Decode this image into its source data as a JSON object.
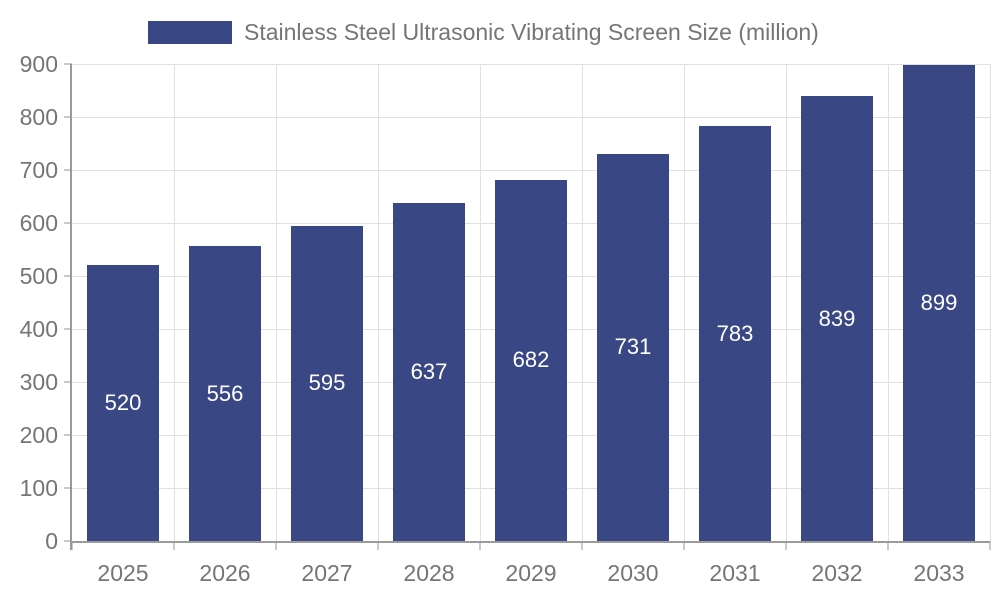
{
  "legend": {
    "label": "Stainless Steel Ultrasonic Vibrating Screen Size (million)"
  },
  "colors": {
    "bar": "#394884",
    "axis_line": "#9a9a9a",
    "gridline": "#e0e0e0",
    "tick_label": "#757575",
    "value_label": "#ffffff",
    "background": "#ffffff"
  },
  "chart_data": {
    "type": "bar",
    "title": "Stainless Steel Ultrasonic Vibrating Screen Size (million)",
    "categories": [
      "2025",
      "2026",
      "2027",
      "2028",
      "2029",
      "2030",
      "2031",
      "2032",
      "2033"
    ],
    "values": [
      520,
      556,
      595,
      637,
      682,
      731,
      783,
      839,
      899
    ],
    "xlabel": "",
    "ylabel": "",
    "ylim": [
      0,
      900
    ],
    "ytick_step": 100,
    "yticks": [
      0,
      100,
      200,
      300,
      400,
      500,
      600,
      700,
      800,
      900
    ],
    "grid": true,
    "legend_position": "top",
    "value_label_position": "inside-center"
  }
}
